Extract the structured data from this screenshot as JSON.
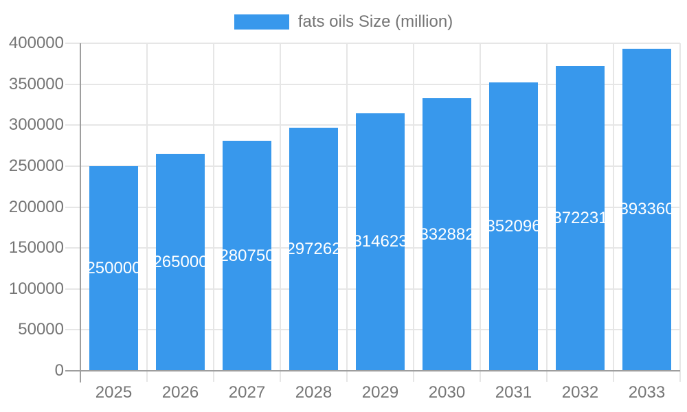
{
  "chart_data": {
    "type": "bar",
    "legend": "fats oils Size (million)",
    "legend_position": "top",
    "categories": [
      "2025",
      "2026",
      "2027",
      "2028",
      "2029",
      "2030",
      "2031",
      "2032",
      "2033"
    ],
    "values": [
      250000,
      265000,
      280750,
      297262,
      314623,
      332882,
      352096,
      372231,
      393360
    ],
    "xlabel": "",
    "ylabel": "",
    "ylim": [
      0,
      400000
    ],
    "ytick_step": 50000,
    "grid": true,
    "colors": {
      "bar": "#3898EC",
      "axis_line": "#9E9E9E",
      "grid_line": "#E6E6E6",
      "tick_label": "#757575",
      "data_label": "#FFFFFF",
      "background": "#FFFFFF"
    }
  }
}
